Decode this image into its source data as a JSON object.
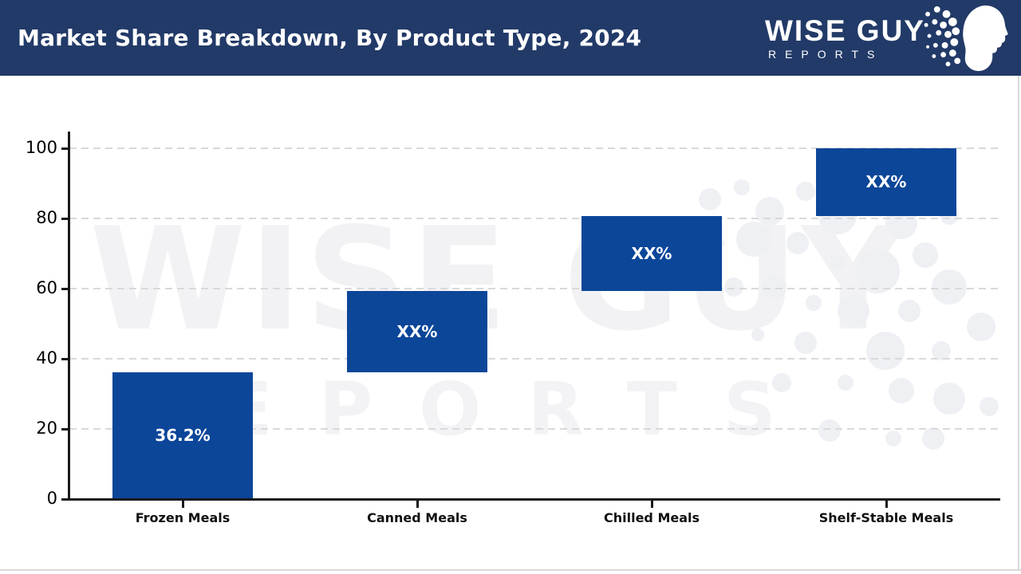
{
  "header": {
    "title": "Market Share Breakdown, By Product Type, 2024",
    "background_color": "#223a68",
    "brand": {
      "line1": "WISE GUY",
      "line2": "REPORTS"
    }
  },
  "watermark": {
    "line1": "WISE GUY",
    "line2": "REPORTS"
  },
  "chart_data": {
    "type": "bar",
    "subtype": "waterfall",
    "title": "Market Share Breakdown, By Product Type, 2024",
    "categories": [
      "Frozen Meals",
      "Canned Meals",
      "Chilled Meals",
      "Shelf-Stable Meals"
    ],
    "segments": [
      {
        "category": "Frozen Meals",
        "start": 0,
        "end": 36.2,
        "value_label": "36.2%"
      },
      {
        "category": "Canned Meals",
        "start": 36.2,
        "end": 59.4,
        "value_label": "XX%"
      },
      {
        "category": "Chilled Meals",
        "start": 59.4,
        "end": 80.7,
        "value_label": "XX%"
      },
      {
        "category": "Shelf-Stable Meals",
        "start": 80.7,
        "end": 100,
        "value_label": "XX%"
      }
    ],
    "ylim": [
      0,
      100
    ],
    "yticks": [
      0,
      20,
      40,
      60,
      80,
      100
    ],
    "grid": "horizontal-dashed",
    "legend": "none",
    "bar_color": "#0c4699",
    "bar_label_color": "#ffffff",
    "axis_color": "#1a1a1a"
  }
}
